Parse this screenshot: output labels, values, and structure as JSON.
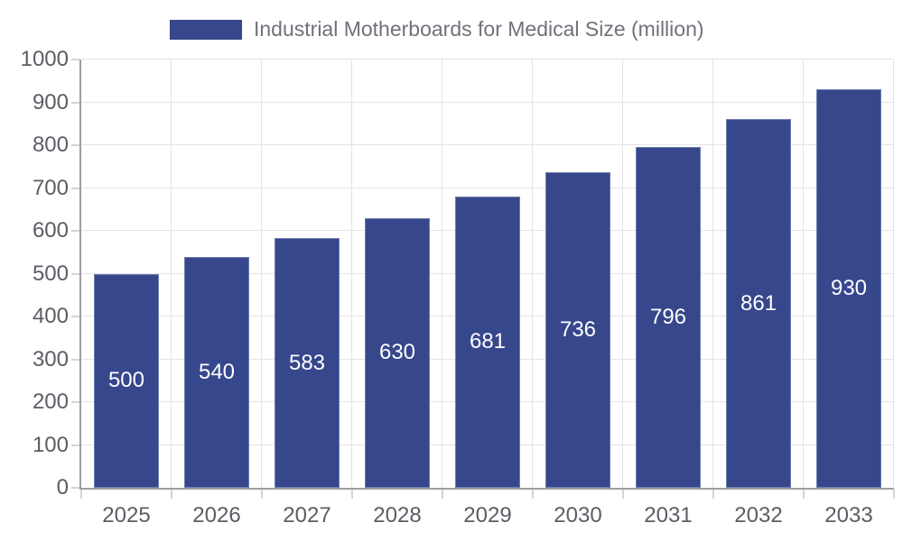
{
  "chart_data": {
    "type": "bar",
    "title": "Industrial Motherboards for Medical Size (million)",
    "categories": [
      "2025",
      "2026",
      "2027",
      "2028",
      "2029",
      "2030",
      "2031",
      "2032",
      "2033"
    ],
    "values": [
      500,
      540,
      583,
      630,
      681,
      736,
      796,
      861,
      930
    ],
    "series": [
      {
        "name": "Industrial Motherboards for Medical Size (million)",
        "values": [
          500,
          540,
          583,
          630,
          681,
          736,
          796,
          861,
          930
        ]
      }
    ],
    "xlabel": "",
    "ylabel": "",
    "ylim": [
      0,
      1000
    ],
    "yticks": [
      0,
      100,
      200,
      300,
      400,
      500,
      600,
      700,
      800,
      900,
      1000
    ],
    "grid": true,
    "legend_position": "top",
    "bar_color": "#36478C",
    "bar_label_color": "#ffffff",
    "bar_labels_visible": true
  }
}
